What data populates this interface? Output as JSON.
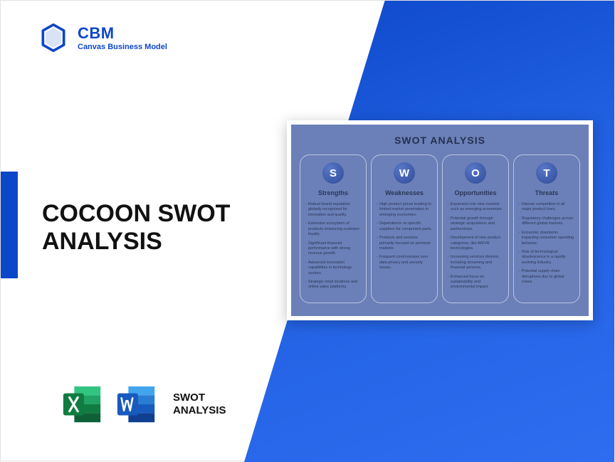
{
  "brand": {
    "name": "CBM",
    "tagline": "Canvas Business Model",
    "color": "#0d47c9"
  },
  "title_line1": "COCOON SWOT",
  "title_line2": "ANALYSIS",
  "icons_label_line1": "SWOT",
  "icons_label_line2": "ANALYSIS",
  "swot": {
    "title": "SWOT ANALYSIS",
    "bg_color": "#6b80b8",
    "circle_color": "#3a56a8",
    "text_color": "#2a3658",
    "columns": [
      {
        "letter": "S",
        "heading": "Strengths",
        "items": [
          "Robust brand reputation globally recognized for innovation and quality.",
          "Extensive ecosystem of products enhancing customer loyalty.",
          "Significant financial performance with strong revenue growth.",
          "Advanced innovation capabilities in technology sectors.",
          "Strategic retail locations and online sales platforms."
        ]
      },
      {
        "letter": "W",
        "heading": "Weaknesses",
        "items": [
          "High product prices leading to limited market penetration in emerging economies.",
          "Dependence on specific suppliers for component parts.",
          "Products and services primarily focused on premium markets.",
          "Frequent controversies over data privacy and security issues."
        ]
      },
      {
        "letter": "O",
        "heading": "Opportunities",
        "items": [
          "Expansion into new markets such as emerging economies.",
          "Potential growth through strategic acquisitions and partnerships.",
          "Development of new product categories, like AR/VR technologies.",
          "Increasing services division, including streaming and financial services.",
          "Enhanced focus on sustainability and environmental impact."
        ]
      },
      {
        "letter": "T",
        "heading": "Threats",
        "items": [
          "Intense competition in all major product lines.",
          "Regulatory challenges across different global markets.",
          "Economic downturns impacting consumer spending behavior.",
          "Risk of technological obsolescence in a rapidly evolving industry.",
          "Potential supply chain disruptions due to global crises."
        ]
      }
    ]
  },
  "excel_colors": {
    "dark": "#107c41",
    "mid": "#21a366",
    "light": "#33c481"
  },
  "word_colors": {
    "dark": "#103f91",
    "mid": "#185abd",
    "light": "#2b7cd3",
    "lighter": "#41a5ee"
  }
}
